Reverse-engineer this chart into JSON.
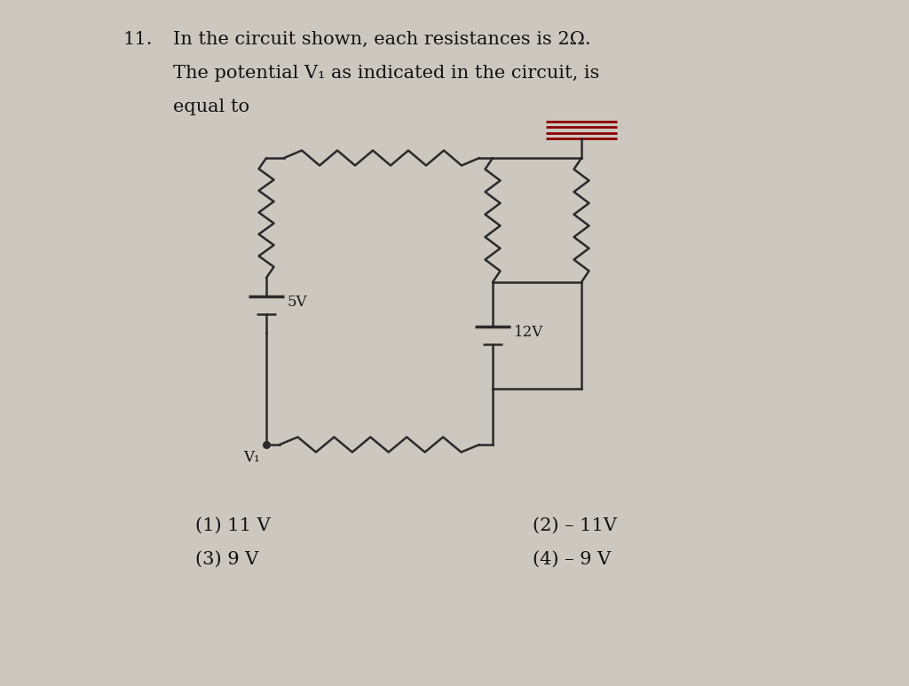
{
  "background_color": "#ccc8c0",
  "question_number": "11.",
  "question_text_line1": "In the circuit shown, each resistances is 2Ω.",
  "question_text_line2": "The potential V₁ as indicated in the circuit, is",
  "question_text_line3": "equal to",
  "options": [
    "(1) 11 V",
    "(3) 9 V",
    "(2) – 11V",
    "(4) – 9 V"
  ],
  "circuit_color": "#2a2a2a",
  "top_battery_color": "#8B0000",
  "battery_5V_label": "5V",
  "battery_12V_label": "12V",
  "V1_label": "V₁",
  "fig_w": 10.24,
  "fig_h": 7.73,
  "dpi": 100
}
